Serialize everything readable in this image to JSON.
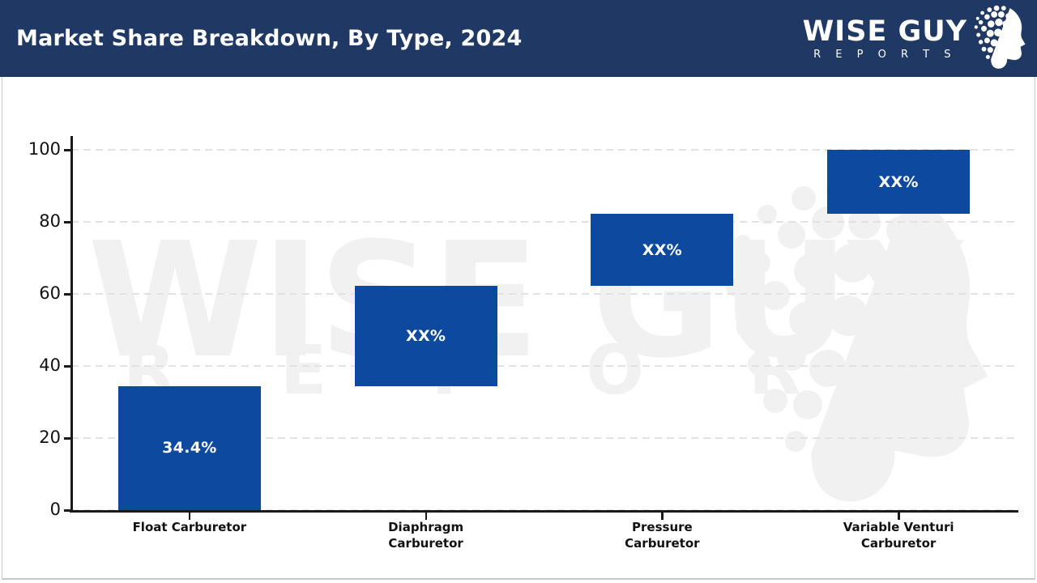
{
  "header": {
    "title": "Market Share Breakdown, By Type, 2024",
    "logo_line1": "WISE GUY",
    "logo_line2": "R E P O R T S"
  },
  "watermark": {
    "line1": "WISE GUY",
    "line2": "R E P O R T S"
  },
  "colors": {
    "header_bg": "#1f3864",
    "bar": "#0d4a9f",
    "grid": "#e2e2e2",
    "axis": "#1a1a1a",
    "watermark": "#f1f1f1"
  },
  "chart_data": {
    "type": "bar",
    "subtype": "waterfall",
    "title": "Market Share Breakdown, By Type, 2024",
    "xlabel": "",
    "ylabel": "",
    "ylim": [
      0,
      104
    ],
    "yticks": [
      0,
      20,
      40,
      60,
      80,
      100
    ],
    "grid": true,
    "categories": [
      "Float Carburetor",
      "Diaphragm\nCarburetor",
      "Pressure\nCarburetor",
      "Variable Venturi\nCarburetor"
    ],
    "segments": [
      {
        "category": "Float Carburetor",
        "start": 0,
        "end": 34.4,
        "label": "34.4%"
      },
      {
        "category": "Diaphragm Carburetor",
        "start": 34.4,
        "end": 62.2,
        "label": "XX%"
      },
      {
        "category": "Pressure Carburetor",
        "start": 62.2,
        "end": 82.2,
        "label": "XX%"
      },
      {
        "category": "Variable Venturi Carburetor",
        "start": 82.2,
        "end": 100,
        "label": "XX%"
      }
    ]
  }
}
